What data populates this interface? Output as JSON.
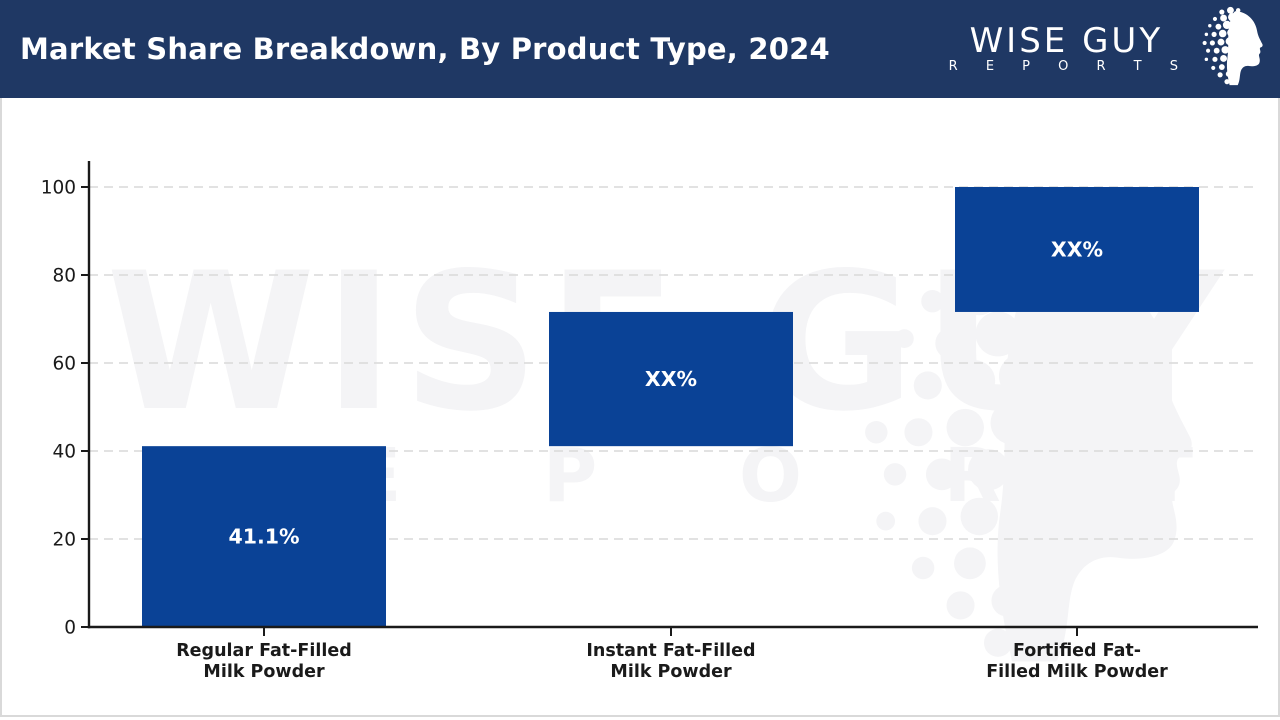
{
  "header": {
    "title": "Market Share Breakdown, By Product Type, 2024",
    "bg_color": "#1f3864",
    "logo": {
      "line1": "WISE GUY",
      "line2": "R E P O R T S"
    }
  },
  "watermark": {
    "line1": "WISE GUY",
    "line2": "R E P O R T S"
  },
  "chart_data": {
    "type": "bar",
    "subtype": "floating-segment-waterfall",
    "title": "Market Share Breakdown, By Product Type, 2024",
    "xlabel": "",
    "ylabel": "",
    "ylim": [
      0,
      106
    ],
    "yticks": [
      0,
      20,
      40,
      60,
      80,
      100
    ],
    "grid": "horizontal-dashed",
    "grid_color": "#d9d9d9",
    "bar_color": "#0a4296",
    "label_color": "#ffffff",
    "axis_color": "#1a1a1a",
    "tick_label_color": "#1a1a1a",
    "categories": [
      "Regular Fat-Filled\nMilk Powder",
      "Instant Fat-Filled\nMilk Powder",
      "Fortified Fat-\nFilled Milk Powder"
    ],
    "series": [
      {
        "category": "Regular Fat-Filled Milk Powder",
        "start": 0,
        "end": 41.1,
        "label": "41.1%"
      },
      {
        "category": "Instant Fat-Filled Milk Powder",
        "start": 41.1,
        "end": 71.6,
        "label": "XX%"
      },
      {
        "category": "Fortified Fat-Filled Milk Powder",
        "start": 71.6,
        "end": 100,
        "label": "XX%"
      }
    ]
  }
}
